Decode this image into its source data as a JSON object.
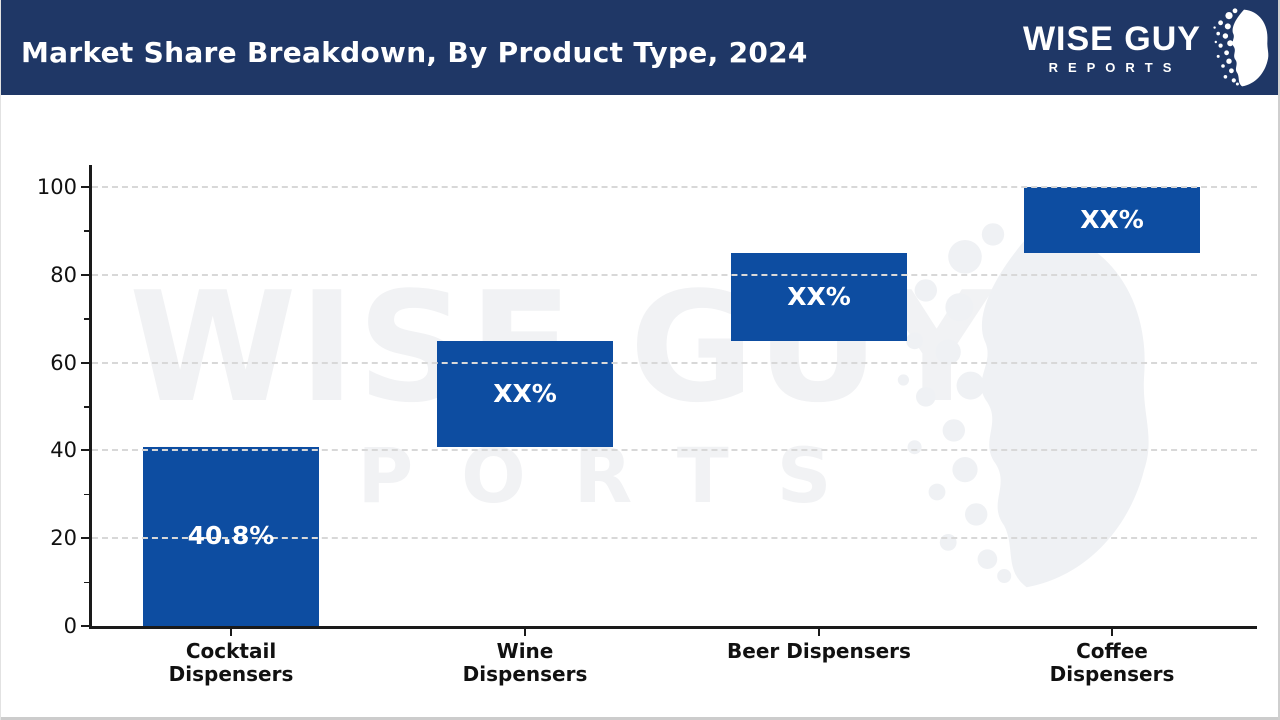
{
  "header": {
    "title": "Market Share Breakdown, By Product Type, 2024",
    "bg_color": "#1f3766",
    "logo": {
      "brand_top": "WISE GUY",
      "brand_bottom": "REPORTS"
    }
  },
  "watermark": {
    "line1": "WISE GUY",
    "line2": "REPORTS"
  },
  "chart_data": {
    "type": "bar",
    "variant": "waterfall-stacked-percentage",
    "title": "Market Share Breakdown, By Product Type, 2024",
    "categories": [
      "Cocktail Dispensers",
      "Wine Dispensers",
      "Beer Dispensers",
      "Coffee Dispensers"
    ],
    "bars": [
      {
        "category": "Cocktail Dispensers",
        "start": 0,
        "end": 40.8,
        "value": 40.8,
        "label": "40.8%"
      },
      {
        "category": "Wine Dispensers",
        "start": 40.8,
        "end": 65,
        "value": 24.2,
        "label": "XX%"
      },
      {
        "category": "Beer Dispensers",
        "start": 65,
        "end": 85,
        "value": 20,
        "label": "XX%"
      },
      {
        "category": "Coffee Dispensers",
        "start": 85,
        "end": 100,
        "value": 15,
        "label": "XX%"
      }
    ],
    "xlabel": "",
    "ylabel": "",
    "ylim": [
      0,
      105
    ],
    "yticks": [
      0,
      20,
      40,
      60,
      80,
      100
    ],
    "minor_yticks": [
      10,
      30,
      50,
      70,
      90
    ],
    "grid": {
      "axis": "y",
      "style": "dashed",
      "color": "#d8d8d8",
      "above_bars": true
    },
    "bar_color": "#0d4da1",
    "bar_label_color": "#ffffff",
    "legend": "none"
  }
}
